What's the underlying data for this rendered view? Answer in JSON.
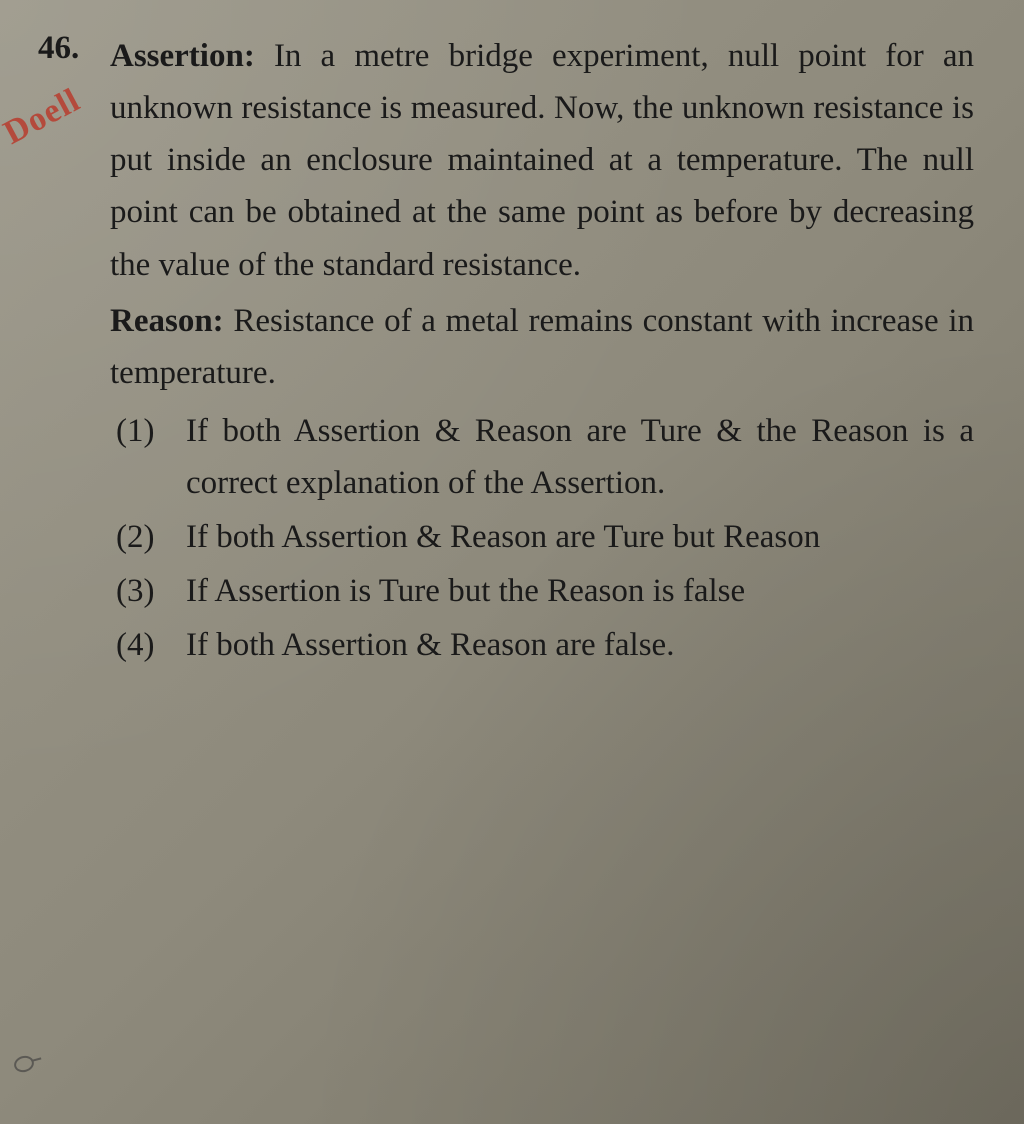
{
  "question": {
    "number": "46.",
    "assertion_label": "Assertion:",
    "assertion_text": " In a metre bridge experiment, null point for an unknown resistance is measured. Now, the unknown resistance is put inside an enclosure maintained at a temperature. The null point can be obtained at the same point as before by decreasing the value of the standard resistance.",
    "reason_label": "Reason:",
    "reason_text": " Resistance of a metal remains constant with increase in temperature.",
    "options": [
      {
        "num": "(1)",
        "text": "If both Assertion & Reason are Ture & the Reason is a correct explanation of the Assertion."
      },
      {
        "num": "(2)",
        "text": "If both Assertion & Reason are Ture but Reason"
      },
      {
        "num": "(3)",
        "text": "If Assertion is Ture but the Reason is false"
      },
      {
        "num": "(4)",
        "text": "If both Assertion & Reason are false."
      }
    ]
  },
  "handwriting_text": "Doell",
  "colors": {
    "background_start": "#9a9688",
    "background_end": "#7a7668",
    "text": "#1a1a1a",
    "handwriting": "#b83d2e"
  },
  "typography": {
    "body_fontsize": 33,
    "line_height": 1.58,
    "font_family": "Times New Roman"
  }
}
